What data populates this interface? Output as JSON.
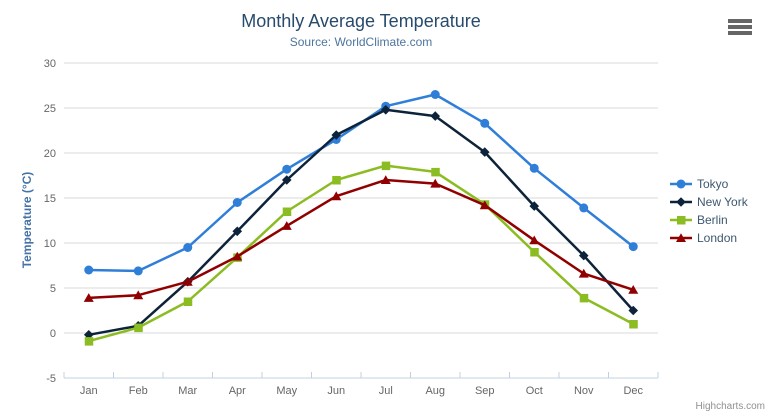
{
  "credits": "Highcharts.com",
  "icons": {
    "menu": "hamburger-icon"
  },
  "colors": {
    "title": "#274b6d",
    "subtitle": "#4d759e",
    "y_axis_title": "#4572a7",
    "tick_label": "#666666",
    "gridline": "#d8d8d8",
    "axis_line": "#c0d0e0",
    "legend_text": "#3e576f",
    "credits_text": "#909090"
  },
  "chart_data": {
    "type": "line",
    "title": "Monthly Average Temperature",
    "subtitle": "Source: WorldClimate.com",
    "xlabel": "",
    "ylabel": "Temperature (°C)",
    "ylim": [
      -5,
      30
    ],
    "ytick_step": 5,
    "grid": true,
    "legend_position": "right",
    "categories": [
      "Jan",
      "Feb",
      "Mar",
      "Apr",
      "May",
      "Jun",
      "Jul",
      "Aug",
      "Sep",
      "Oct",
      "Nov",
      "Dec"
    ],
    "series": [
      {
        "name": "Tokyo",
        "color": "#2f7ed8",
        "marker": "circle",
        "values": [
          7.0,
          6.9,
          9.5,
          14.5,
          18.2,
          21.5,
          25.2,
          26.5,
          23.3,
          18.3,
          13.9,
          9.6
        ]
      },
      {
        "name": "New York",
        "color": "#0d233a",
        "marker": "diamond",
        "values": [
          -0.2,
          0.8,
          5.7,
          11.3,
          17.0,
          22.0,
          24.8,
          24.1,
          20.1,
          14.1,
          8.6,
          2.5
        ]
      },
      {
        "name": "Berlin",
        "color": "#8bbc21",
        "marker": "square",
        "values": [
          -0.9,
          0.6,
          3.5,
          8.4,
          13.5,
          17.0,
          18.6,
          17.9,
          14.3,
          9.0,
          3.9,
          1.0
        ]
      },
      {
        "name": "London",
        "color": "#910000",
        "marker": "triangle",
        "values": [
          3.9,
          4.2,
          5.7,
          8.5,
          11.9,
          15.2,
          17.0,
          16.6,
          14.2,
          10.3,
          6.6,
          4.8
        ]
      }
    ]
  }
}
